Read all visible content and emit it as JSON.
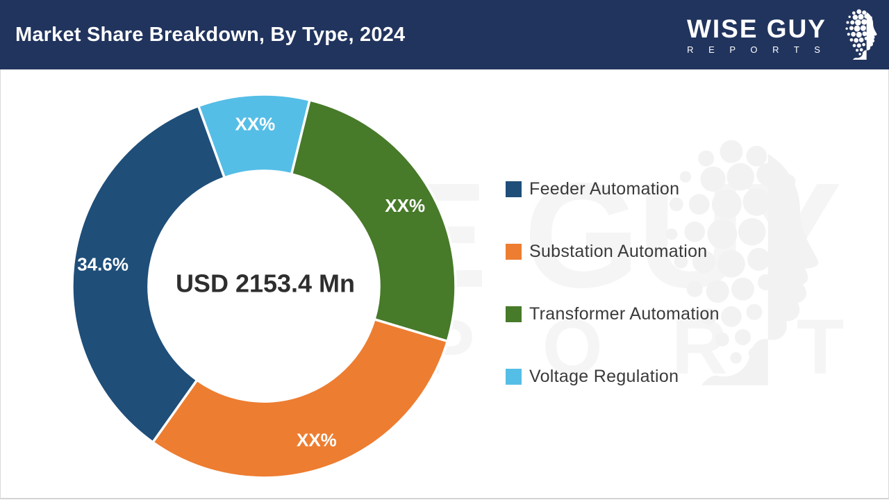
{
  "header": {
    "title": "Market Share Breakdown, By Type, 2024",
    "logo": {
      "line1": "WISE GUY",
      "line2": "R E P O R T S"
    }
  },
  "watermark": {
    "line1": "WISE GUY",
    "line2": "R E P O R T S"
  },
  "chart_data": {
    "type": "pie",
    "subtype": "donut",
    "title": "Market Share Breakdown, By Type, 2024",
    "center_label": "USD 2153.4 Mn",
    "legend_position": "right",
    "start_angle_deg": 340,
    "draw_order": [
      3,
      2,
      1,
      0
    ],
    "segments": [
      {
        "label": "Feeder Automation",
        "display_value": "34.6%",
        "share_pct_est": 34.6,
        "color": "#1F4E79"
      },
      {
        "label": "Substation Automation",
        "display_value": "XX%",
        "share_pct_est": 30.2,
        "color": "#ED7D31"
      },
      {
        "label": "Transformer Automation",
        "display_value": "XX%",
        "share_pct_est": 25.8,
        "color": "#477A29"
      },
      {
        "label": "Voltage Regulation",
        "display_value": "XX%",
        "share_pct_est": 9.4,
        "color": "#55BEE7"
      }
    ]
  }
}
